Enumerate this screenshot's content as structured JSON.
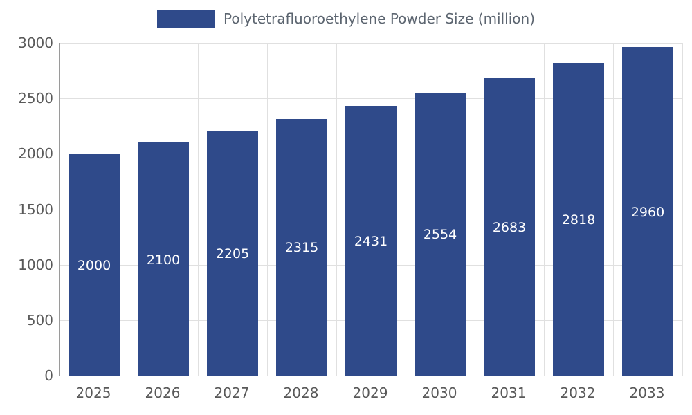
{
  "chart_data": {
    "type": "bar",
    "title": "",
    "legend": "Polytetrafluoroethylene Powder Size (million)",
    "legend_position": "top",
    "categories": [
      "2025",
      "2026",
      "2027",
      "2028",
      "2029",
      "2030",
      "2031",
      "2032",
      "2033"
    ],
    "values": [
      2000,
      2100,
      2205,
      2315,
      2431,
      2554,
      2683,
      2818,
      2960
    ],
    "xlabel": "",
    "ylabel": "",
    "ylim": [
      0,
      3000
    ],
    "yticks": [
      0,
      500,
      1000,
      1500,
      2000,
      2500,
      3000
    ],
    "grid": true,
    "bar_color": "#2F4A8A",
    "value_label_color": "#FFFFFF"
  }
}
